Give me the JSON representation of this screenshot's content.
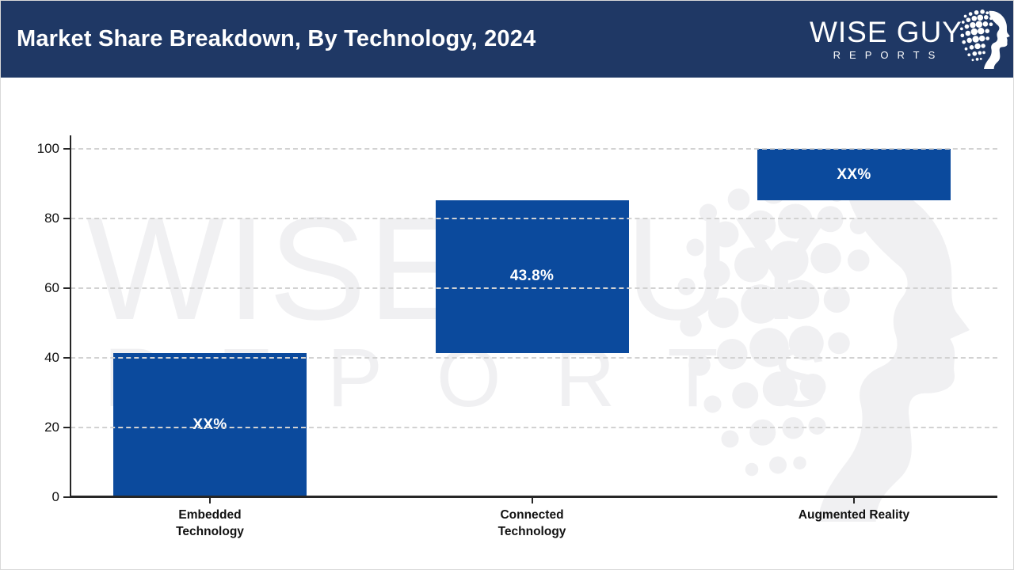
{
  "header": {
    "title": "Market Share Breakdown, By Technology, 2024"
  },
  "logo": {
    "name_line": "WISE GUY",
    "sub_line": "REPORTS"
  },
  "watermark": {
    "name_line": "WISE GUY",
    "sub_line": "REPORTS"
  },
  "chart_data": {
    "type": "bar",
    "subtype": "waterfall",
    "title": "Market Share Breakdown, By Technology, 2024",
    "categories": [
      "Embedded Technology",
      "Connected Technology",
      "Augmented Reality"
    ],
    "category_lines": [
      [
        "Embedded",
        "Technology"
      ],
      [
        "Connected",
        "Technology"
      ],
      [
        "Augmented Reality"
      ]
    ],
    "bars": [
      {
        "label": "XX%",
        "start": 0,
        "end": 41.4
      },
      {
        "label": "43.8%",
        "start": 41.4,
        "end": 85.2
      },
      {
        "label": "XX%",
        "start": 85.2,
        "end": 100
      }
    ],
    "yticks": [
      0,
      20,
      40,
      60,
      80,
      100
    ],
    "ylim": [
      0,
      100
    ],
    "xlabel": "",
    "ylabel": "",
    "legend": "none",
    "grid": "horizontal-dashed-over-bars",
    "bar_color": "#0b4a9d",
    "colors": {
      "header_bg": "#1f3865",
      "axis": "#262626",
      "grid": "#d2d2d2",
      "bar_label_text": "#ffffff",
      "watermark": "#f0f0f2"
    }
  }
}
